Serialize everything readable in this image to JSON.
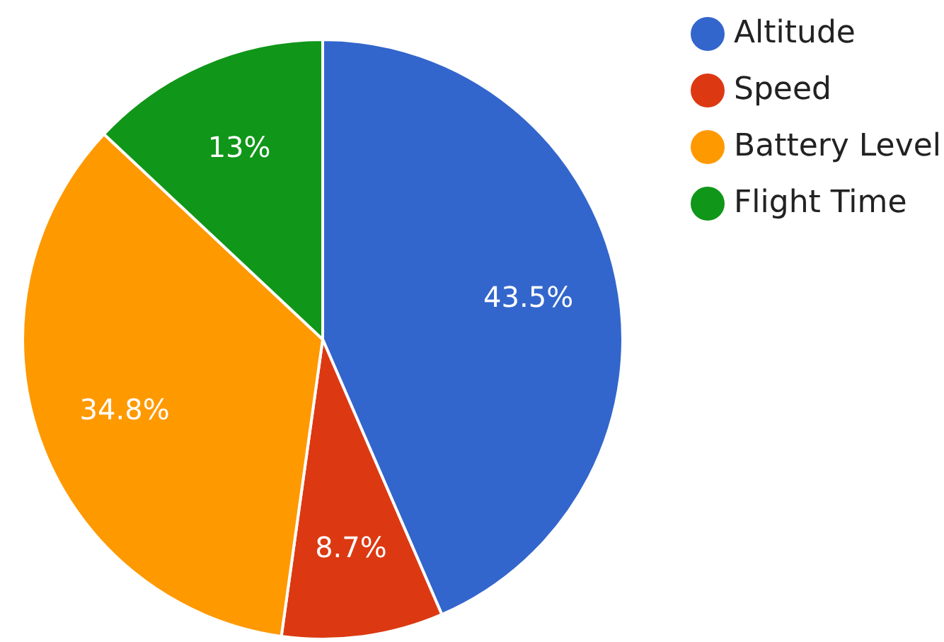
{
  "chart_data": {
    "type": "pie",
    "categories": [
      "Altitude",
      "Speed",
      "Battery Level",
      "Flight Time"
    ],
    "values": [
      43.5,
      8.7,
      34.8,
      13
    ],
    "colors": [
      "#3366cc",
      "#dc3912",
      "#ff9900",
      "#109618"
    ],
    "value_labels": [
      "43.5%",
      "8.7%",
      "34.8%",
      "13%"
    ],
    "legend": "top right"
  }
}
